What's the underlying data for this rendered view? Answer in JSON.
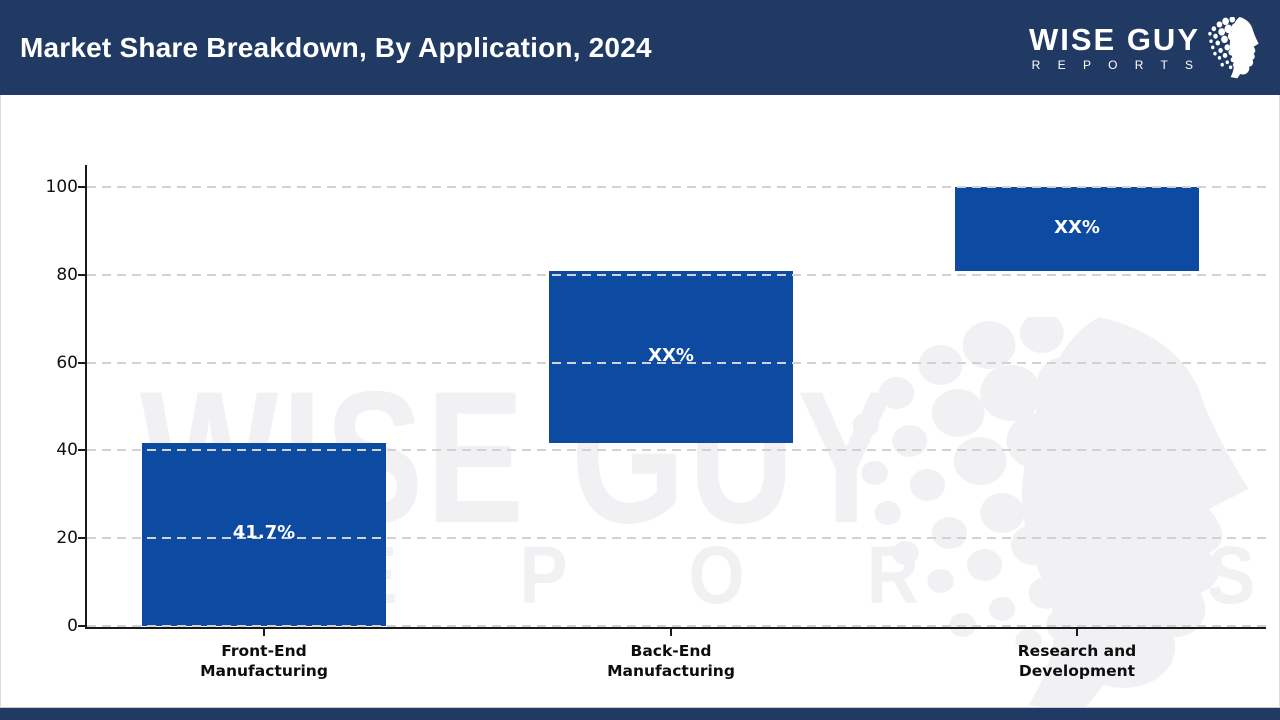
{
  "header": {
    "title": "Market Share Breakdown, By Application, 2024",
    "logo": {
      "brand_line1": "WISE GUY",
      "brand_line2": "R E P O R T S"
    }
  },
  "watermark": {
    "line1": "WISE GUY",
    "line2": "R E P O R T S"
  },
  "chart_data": {
    "type": "bar",
    "variant": "waterfall",
    "title": "Market Share Breakdown, By Application, 2024",
    "categories": [
      {
        "line1": "Front-End",
        "line2": "Manufacturing"
      },
      {
        "line1": "Back-End",
        "line2": "Manufacturing"
      },
      {
        "line1": "Research and",
        "line2": "Development"
      }
    ],
    "segments": [
      {
        "category": "Front-End Manufacturing",
        "start": 0,
        "end": 41.7,
        "label": "41.7%"
      },
      {
        "category": "Back-End Manufacturing",
        "start": 41.7,
        "end": 80.8,
        "label": "XX%"
      },
      {
        "category": "Research and Development",
        "start": 80.8,
        "end": 100,
        "label": "XX%"
      }
    ],
    "yticks": [
      0,
      20,
      40,
      60,
      80,
      100
    ],
    "ylim": [
      0,
      100
    ],
    "grid": "horizontal-dashed",
    "legend": "none",
    "colors": {
      "bar": "#0d4aa1",
      "header_bg": "#213a64",
      "grid": "#d2d2d2",
      "axis": "#1a1a1a",
      "label_on_bar": "#ffffff"
    }
  }
}
